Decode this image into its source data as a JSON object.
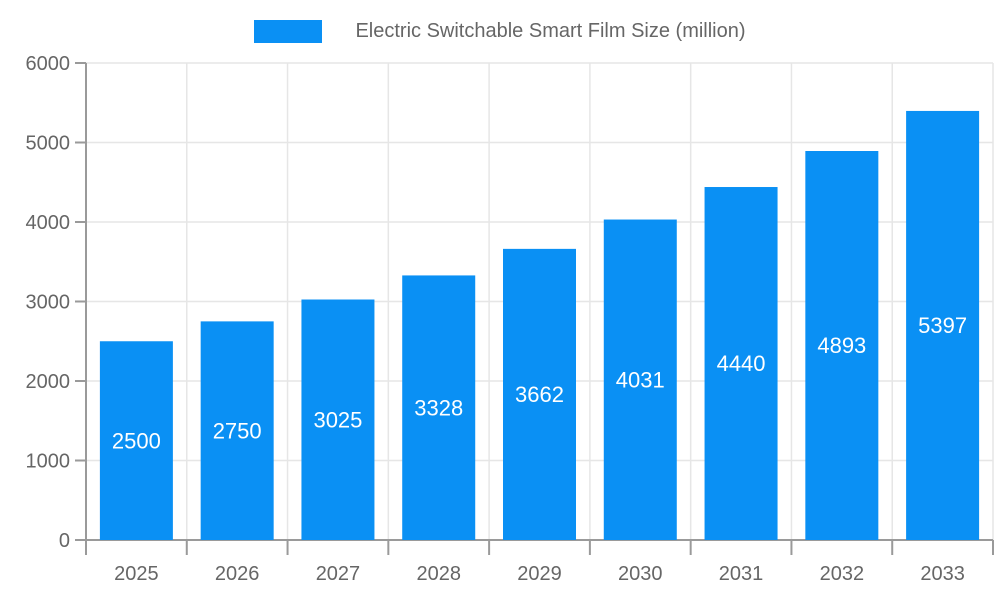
{
  "chart_data": {
    "type": "bar",
    "title": "Electric Switchable Smart Film Size (million)",
    "categories": [
      "2025",
      "2026",
      "2027",
      "2028",
      "2029",
      "2030",
      "2031",
      "2032",
      "2033"
    ],
    "values": [
      2500,
      2750,
      3025,
      3328,
      3662,
      4031,
      4440,
      4893,
      5397
    ],
    "xlabel": "",
    "ylabel": "",
    "ylim": [
      0,
      6000
    ],
    "y_ticks": [
      0,
      1000,
      2000,
      3000,
      4000,
      5000,
      6000
    ],
    "grid": true,
    "legend_position": "top-center",
    "value_labels": "inside-center"
  },
  "colors": {
    "bar": "#0a90f4",
    "bar_value_text": "#ffffff",
    "axis_line": "#9a9a9a",
    "gridline": "#e6e6e6",
    "tick_label_text": "#666666",
    "legend_text": "#666666",
    "background": "#ffffff"
  }
}
